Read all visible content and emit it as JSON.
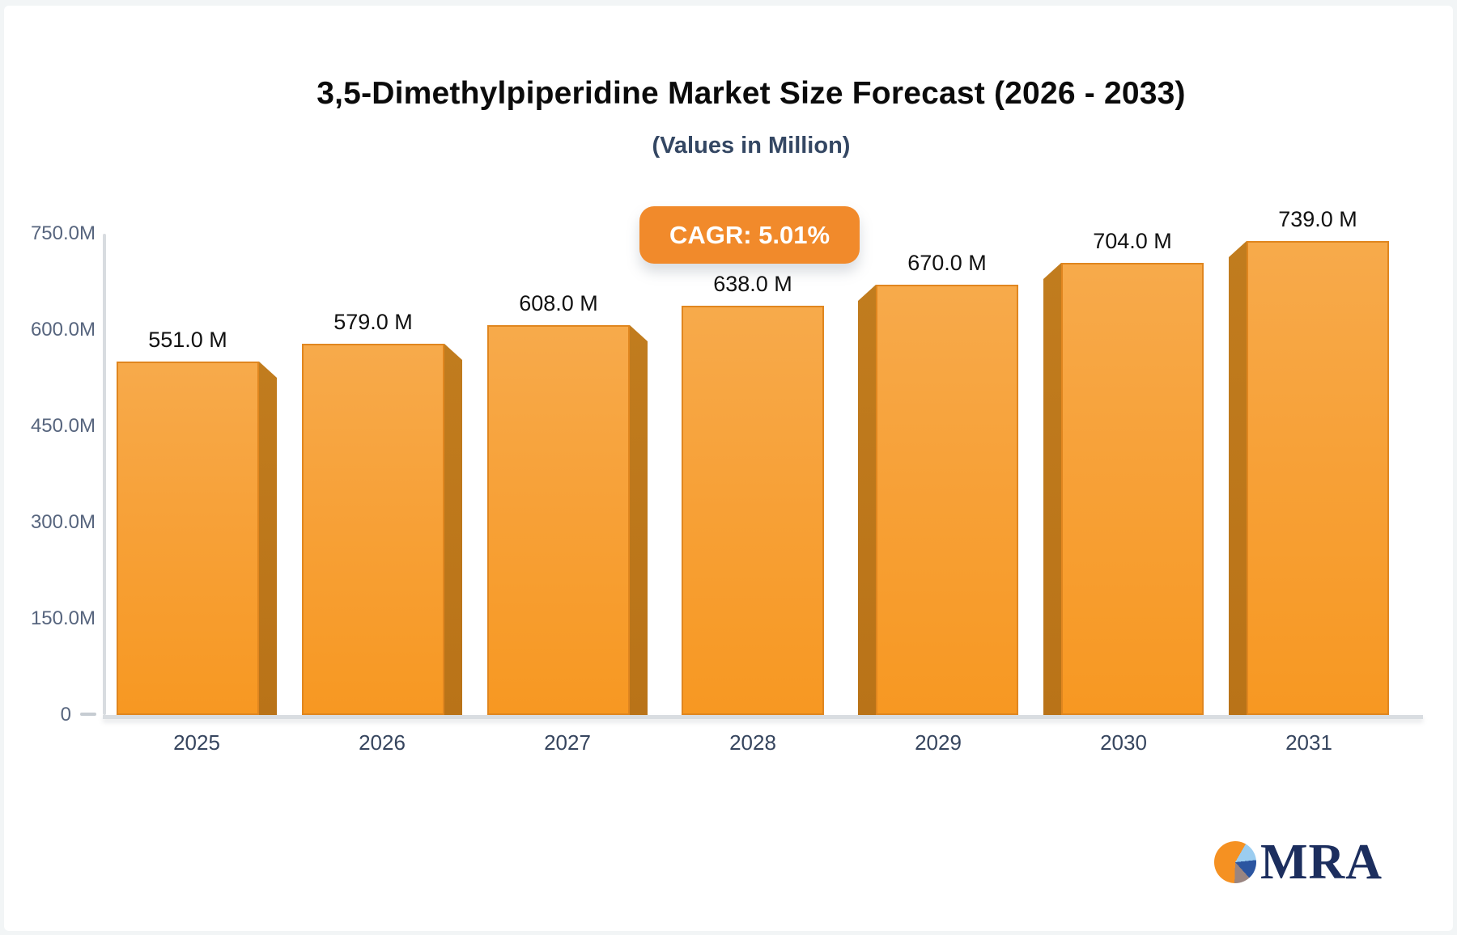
{
  "page": {
    "background": "#f2f5f6",
    "card_background": "#ffffff"
  },
  "header": {
    "title": "3,5-Dimethylpiperidine Market Size Forecast (2026 - 2033)",
    "subtitle": "(Values in Million)"
  },
  "badge": {
    "label": "CAGR: 5.01%",
    "background": "#f18a2b",
    "text_color": "#ffffff"
  },
  "chart_data": {
    "type": "bar",
    "title": "3,5-Dimethylpiperidine Market Size Forecast (2026 - 2033)",
    "subtitle": "(Values in Million)",
    "cagr_label": "CAGR: 5.01%",
    "categories": [
      "2025",
      "2026",
      "2027",
      "2028",
      "2029",
      "2030",
      "2031"
    ],
    "values": [
      551,
      579,
      608,
      638,
      670,
      704,
      739
    ],
    "bar_labels": [
      "551.0 M",
      "579.0 M",
      "608.0 M",
      "638.0 M",
      "670.0 M",
      "704.0 M",
      "739.0 M"
    ],
    "ylim": [
      0,
      750
    ],
    "y_ticks": [
      {
        "label": "750.0M",
        "value": 750
      },
      {
        "label": "600.0M",
        "value": 600
      },
      {
        "label": "450.0M",
        "value": 450
      },
      {
        "label": "300.0M",
        "value": 300
      },
      {
        "label": "150.0M",
        "value": 150
      },
      {
        "label": "0",
        "value": 0
      }
    ],
    "grid": false,
    "legend": false,
    "colors": {
      "bar_face_top": "#f7aa4b",
      "bar_face_bottom": "#f79822",
      "bar_face_border": "#e0861f",
      "bar_side": "#b97318",
      "axis_line": "#d8dce0",
      "tick_label": "#57657e",
      "category_label": "#36455e",
      "value_label": "#111111"
    }
  },
  "logo": {
    "text": "MRA",
    "colors": {
      "text": "#1c2e5e",
      "pie_main": "#f59122",
      "pie_light_blue": "#9bcdf0",
      "pie_navy": "#2b55a0",
      "pie_gray": "#9a8580"
    }
  }
}
